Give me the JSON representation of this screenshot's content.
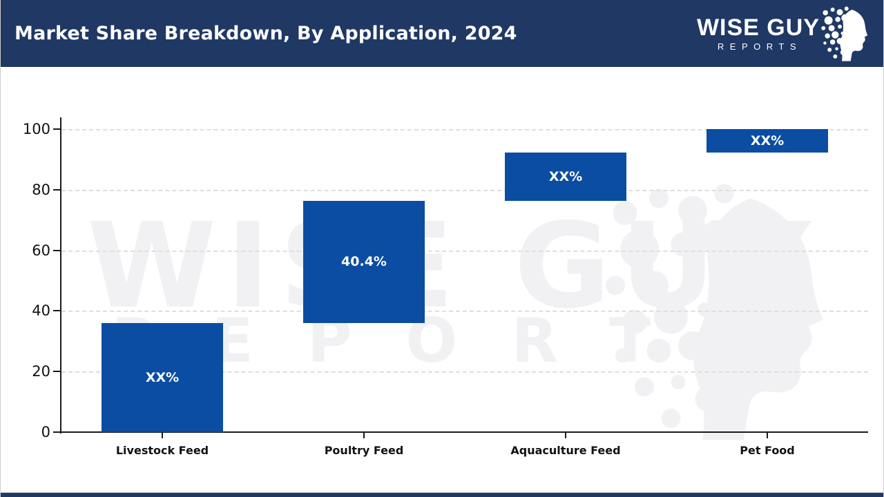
{
  "header": {
    "title": "Market Share Breakdown, By Application, 2024",
    "bg_color": "#1f3864",
    "logo": {
      "line1": "WISE GUY",
      "line2": "REPORTS"
    }
  },
  "icons": {
    "logo_face": "dotted-face-profile",
    "watermark_face": "dotted-face-profile"
  },
  "watermark": {
    "line1": "WISE GUY",
    "line2": "REPORTS"
  },
  "chart_data": {
    "type": "bar",
    "subtype": "waterfall",
    "title": "Market Share Breakdown, By Application, 2024",
    "categories": [
      "Livestock Feed",
      "Poultry Feed",
      "Aquaculture Feed",
      "Pet Food"
    ],
    "values": [
      36,
      40.4,
      15.8,
      7.8
    ],
    "cumulative_starts": [
      0,
      36,
      76.4,
      92.2
    ],
    "bar_labels": [
      "XX%",
      "40.4%",
      "XX%",
      "XX%"
    ],
    "yticks": [
      0,
      20,
      40,
      60,
      80,
      100
    ],
    "ylim": [
      0,
      104
    ],
    "xlabel": "",
    "ylabel": "",
    "grid": "horizontal-dashed",
    "legend": "none",
    "bar_color": "#0b4da2",
    "bar_label_color": "#ffffff",
    "gridline_color": "#dedede",
    "axis_color": "#1a1a1a"
  }
}
